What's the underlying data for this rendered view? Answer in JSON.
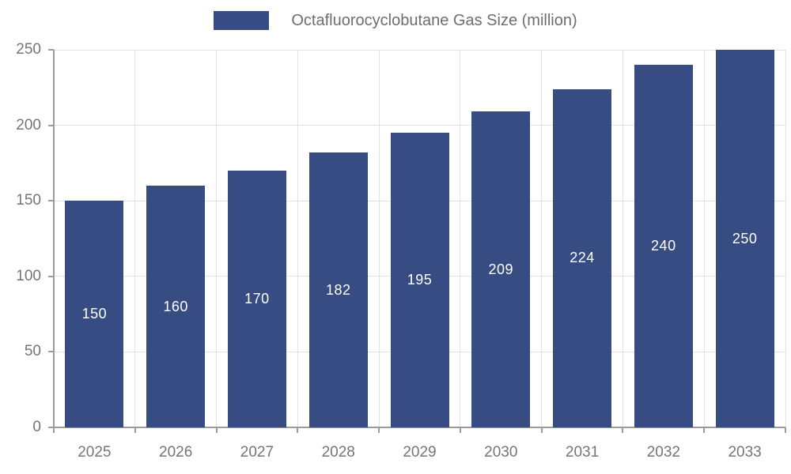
{
  "chart_data": {
    "type": "bar",
    "title": "",
    "legend": "Octafluorocyclobutane Gas Size (million)",
    "legend_position": "top",
    "categories": [
      "2025",
      "2026",
      "2027",
      "2028",
      "2029",
      "2030",
      "2031",
      "2032",
      "2033"
    ],
    "values": [
      150,
      160,
      170,
      182,
      195,
      209,
      224,
      240,
      250
    ],
    "xlabel": "",
    "ylabel": "",
    "ylim": [
      0,
      250
    ],
    "yticks": [
      0,
      50,
      100,
      150,
      200,
      250
    ],
    "grid": true,
    "colors": {
      "bar": "#374c82",
      "value_label": "#ffffff",
      "axis_text": "#757575",
      "legend_text": "#6e6e6e",
      "gridline": "#e2e2e2",
      "axis_line": "#9b9b9b"
    }
  }
}
